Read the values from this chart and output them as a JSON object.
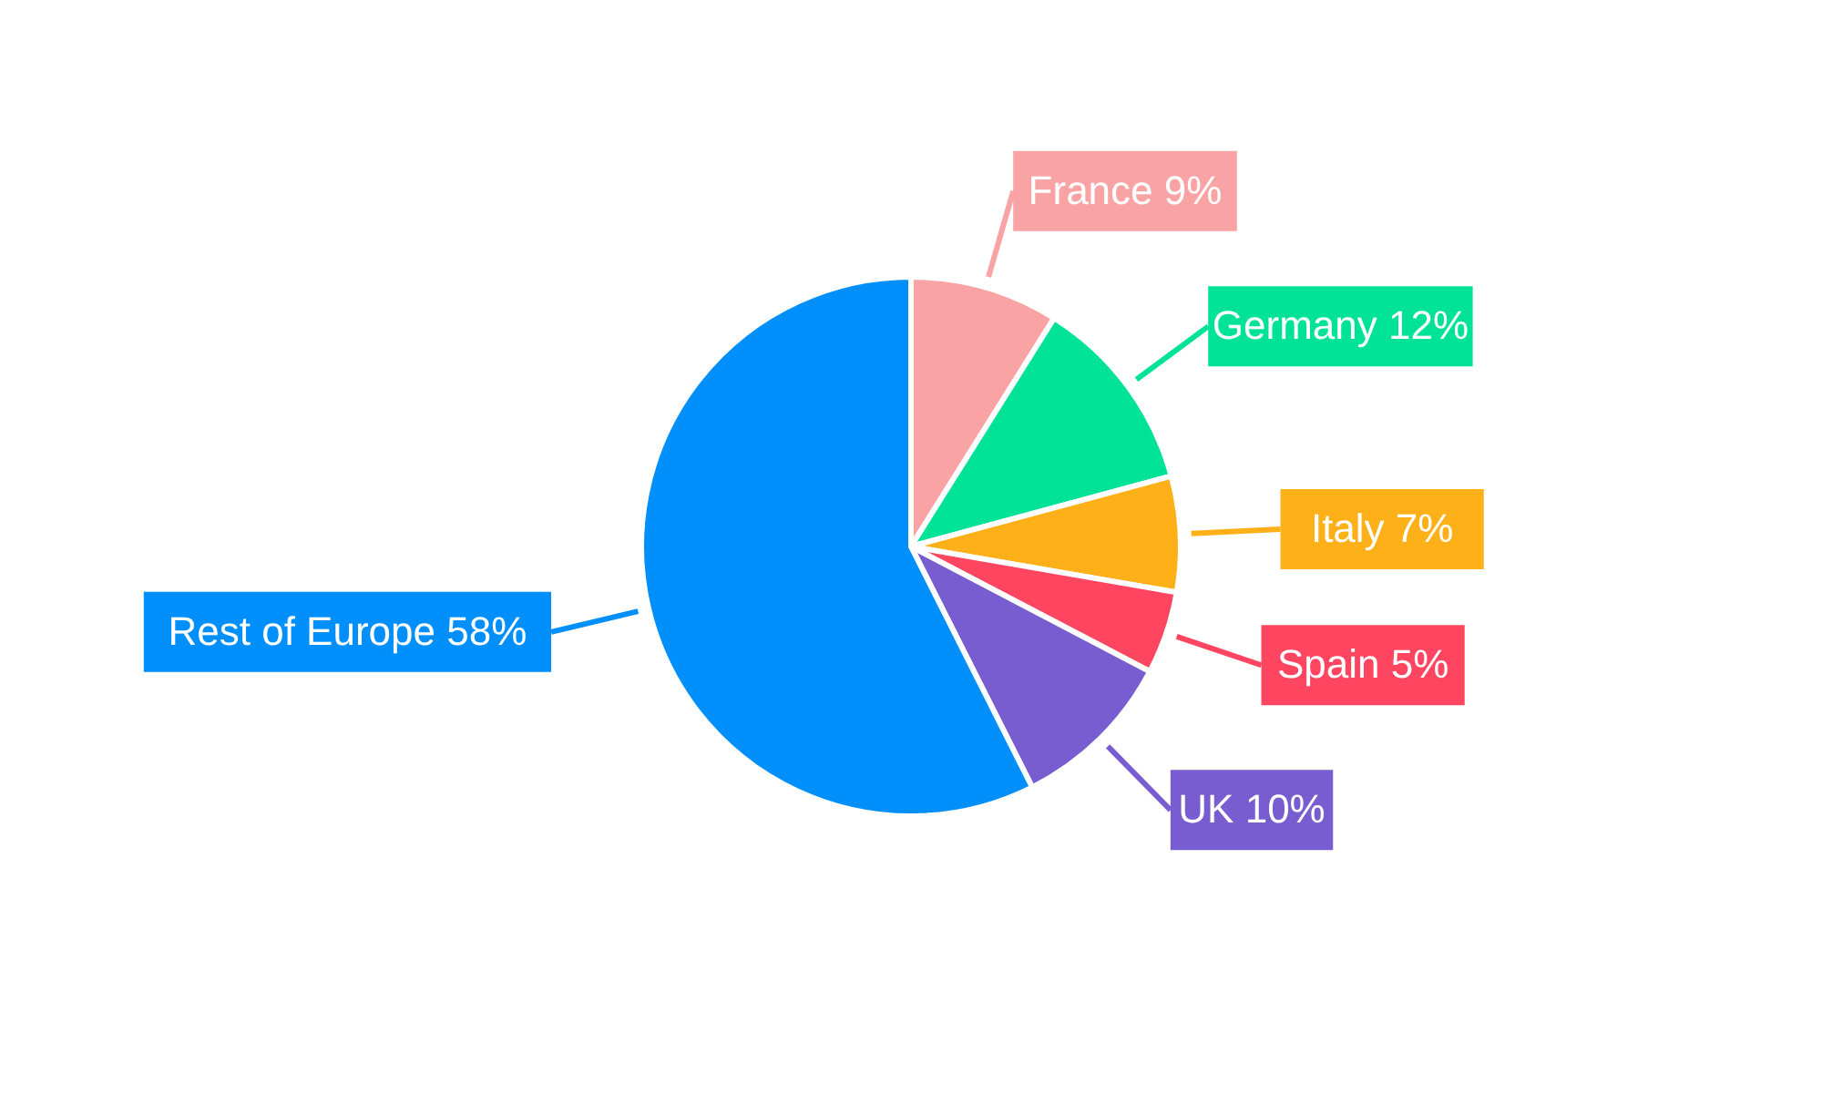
{
  "chart_data": {
    "type": "pie",
    "categories": [
      "France",
      "Germany",
      "Italy",
      "Spain",
      "UK",
      "Rest of Europe"
    ],
    "values": [
      9,
      12,
      7,
      5,
      10,
      58
    ],
    "value_labels": [
      "9%",
      "12%",
      "7%",
      "5%",
      "10%",
      "58%"
    ],
    "colors": [
      "#f9a3a4",
      "#00e396",
      "#feb019",
      "#ff4560",
      "#775dd0",
      "#008ffb"
    ]
  }
}
